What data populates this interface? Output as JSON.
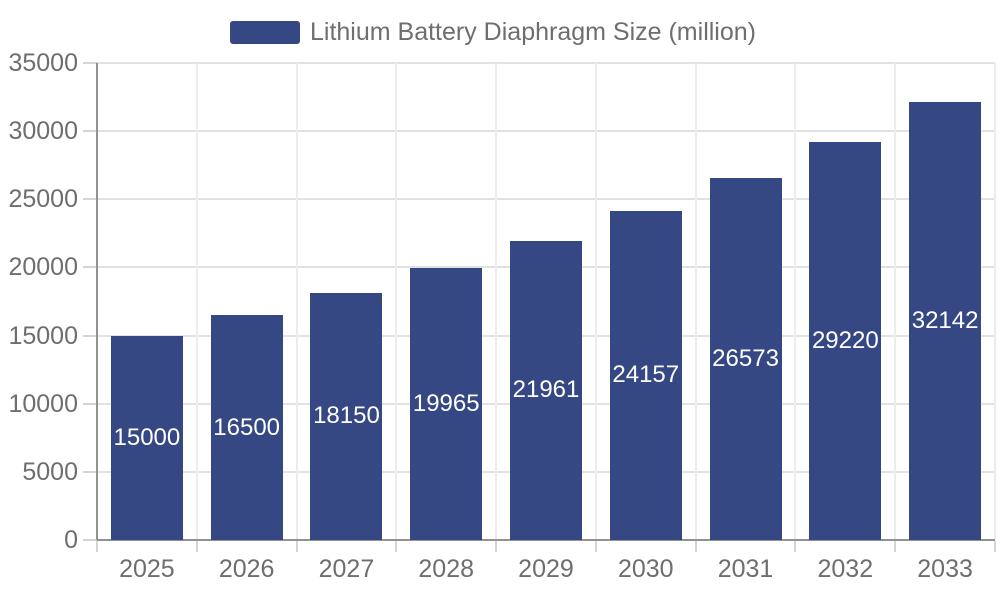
{
  "chart_data": {
    "type": "bar",
    "title": "Lithium Battery Diaphragm Size (million)",
    "legend": [
      "Lithium Battery Diaphragm Size (million)"
    ],
    "legend_position": "top-center",
    "categories": [
      "2025",
      "2026",
      "2027",
      "2028",
      "2029",
      "2030",
      "2031",
      "2032",
      "2033"
    ],
    "values": [
      15000,
      16500,
      18150,
      19965,
      21961,
      24157,
      26573,
      29220,
      32142
    ],
    "xlabel": "",
    "ylabel": "",
    "ylim": [
      0,
      35000
    ],
    "yticks": [
      0,
      5000,
      10000,
      15000,
      20000,
      25000,
      30000,
      35000
    ],
    "grid": true,
    "bar_labels_visible": true
  },
  "colors": {
    "bar": "#354884",
    "bar_value_label": "#ffffff",
    "axis_line": "#929292",
    "h_gridline": "#e2e2e2",
    "v_gridline": "#ececec",
    "tick": "#d4d4d4",
    "axis_label": "#6e6e6e",
    "legend_text": "#6e6e6e",
    "background": "#ffffff"
  }
}
